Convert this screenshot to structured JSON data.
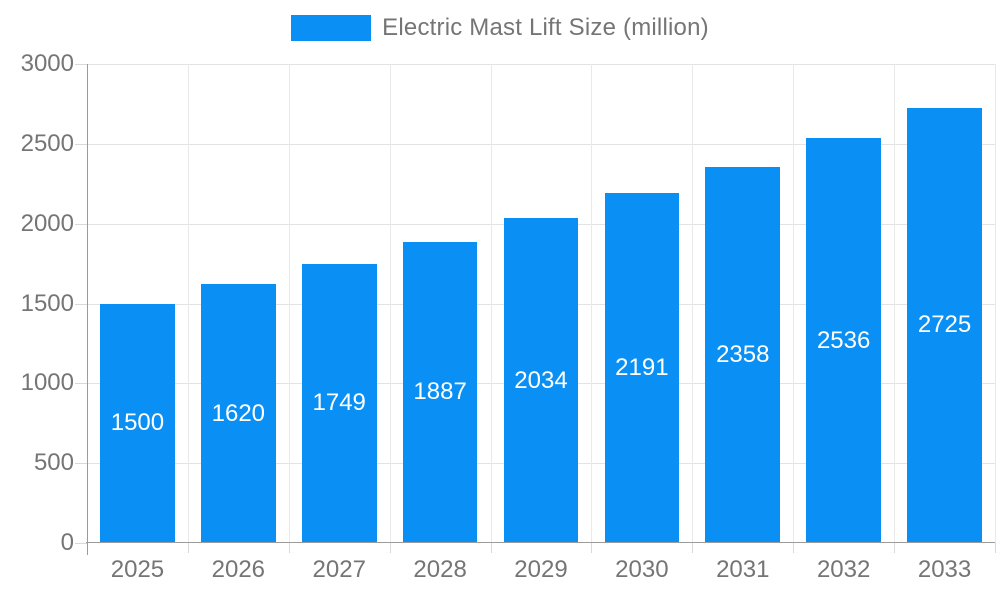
{
  "legend": {
    "label": "Electric Mast Lift Size (million)"
  },
  "colors": {
    "bar": "#0a90f5",
    "grid": "#e3e3e3",
    "axis": "#9b9b9b",
    "tick_label": "#757575",
    "bar_value_text": "#ffffff"
  },
  "chart_data": {
    "type": "bar",
    "title": "Electric Mast Lift Size (million)",
    "categories": [
      "2025",
      "2026",
      "2027",
      "2028",
      "2029",
      "2030",
      "2031",
      "2032",
      "2033"
    ],
    "values": [
      1500,
      1620,
      1749,
      1887,
      2034,
      2191,
      2358,
      2536,
      2725
    ],
    "xlabel": "",
    "ylabel": "",
    "ylim": [
      0,
      3000
    ],
    "yticks": [
      0,
      500,
      1000,
      1500,
      2000,
      2500,
      3000
    ],
    "grid": true,
    "legend_position": "top-center",
    "bar_label_position": "inside-center",
    "series_name": "Electric Mast Lift Size (million)"
  }
}
